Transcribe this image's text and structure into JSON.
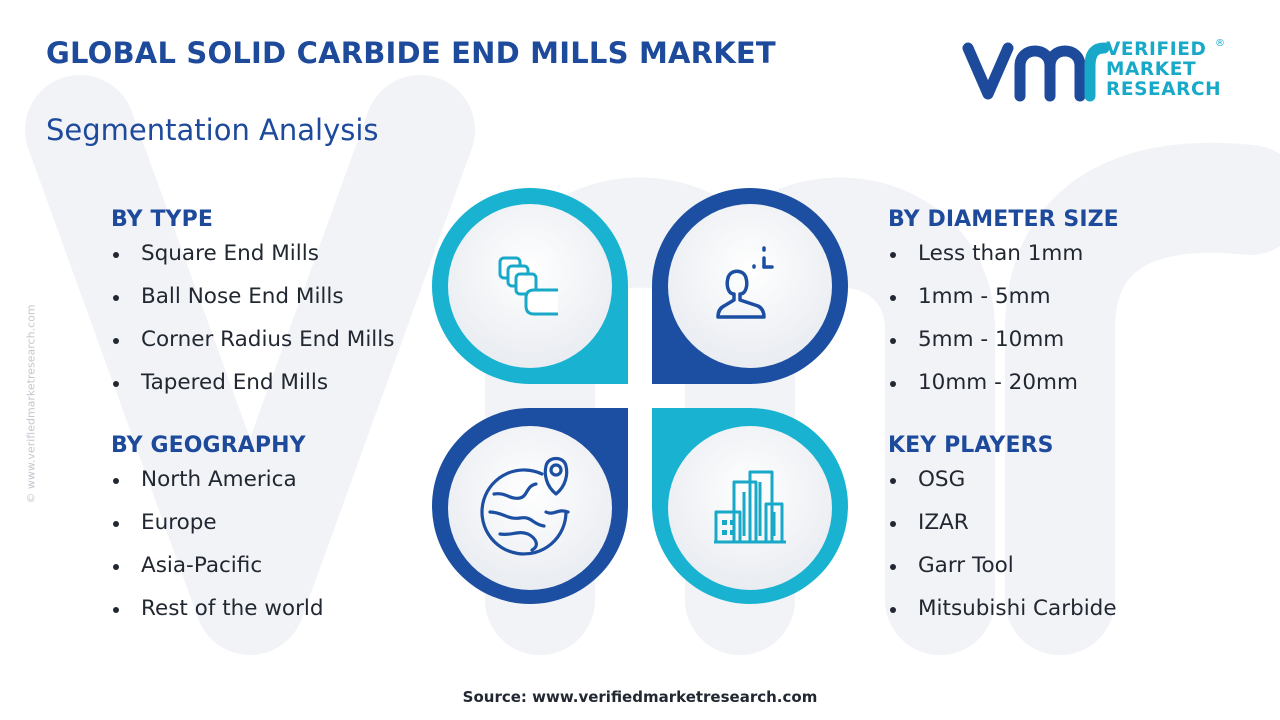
{
  "header": {
    "title": "GLOBAL SOLID CARBIDE END MILLS MARKET",
    "subtitle": "Segmentation Analysis"
  },
  "logo": {
    "line1": "VERIFIED",
    "line2": "MARKET",
    "line3": "RESEARCH",
    "registered": "®"
  },
  "side_watermark": "© www.verifiedmarketresearch.com",
  "segments": {
    "type": {
      "heading": "BY TYPE",
      "items": [
        "Square End Mills",
        "Ball Nose End Mills",
        "Corner Radius End Mills",
        "Tapered End Mills"
      ]
    },
    "geography": {
      "heading": "BY GEOGRAPHY",
      "items": [
        "North America",
        "Europe",
        "Asia-Pacific",
        "Rest of the world"
      ]
    },
    "diameter": {
      "heading": "BY DIAMETER SIZE",
      "items": [
        "Less than 1mm",
        "1mm - 5mm",
        "5mm - 10mm",
        "10mm - 20mm"
      ]
    },
    "players": {
      "heading": "KEY PLAYERS",
      "items": [
        "OSG",
        "IZAR",
        "Garr Tool",
        "Mitsubishi Carbide"
      ]
    }
  },
  "graphic": {
    "icons": [
      "layers-icon",
      "person-icon",
      "globe-location-icon",
      "city-buildings-icon"
    ]
  },
  "colors": {
    "title_blue": "#1e4a9c",
    "cyan": "#19b3d1",
    "dark_blue": "#1c4fa2",
    "text": "#222831"
  },
  "footer": {
    "source": "Source: www.verifiedmarketresearch.com"
  }
}
